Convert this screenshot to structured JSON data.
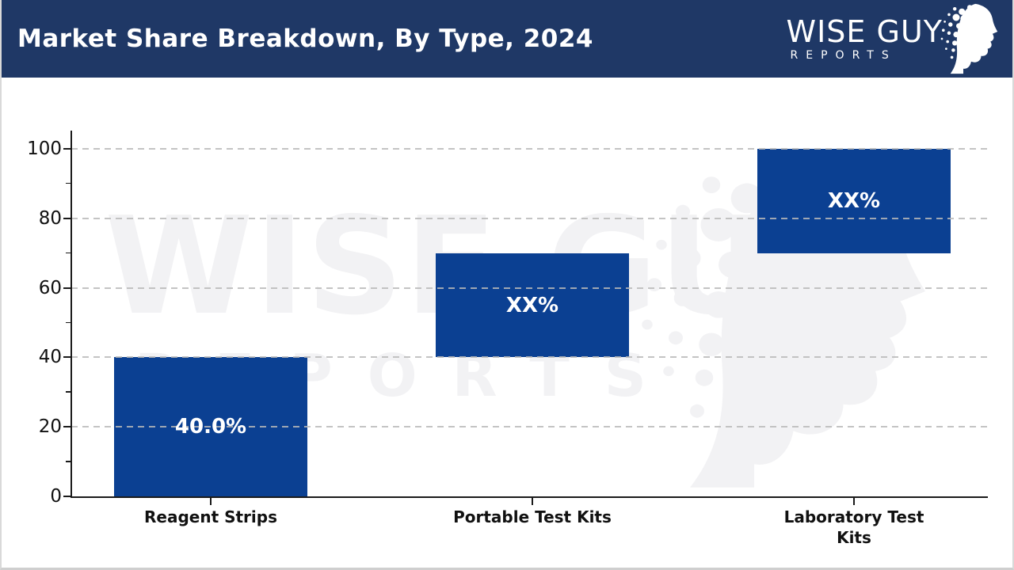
{
  "header": {
    "title": "Market Share Breakdown, By Type, 2024",
    "bg_color": "#1f3866",
    "logo": {
      "line1": "WISE GUY",
      "line2": "REPORTS"
    }
  },
  "watermark": {
    "line1": "WISE GUY",
    "line2": "REPORTS",
    "color": "#f2f2f4"
  },
  "chart_data": {
    "type": "bar",
    "subtype": "floating_segment_bars",
    "title": "Market Share Breakdown, By Type, 2024",
    "categories": [
      "Reagent Strips",
      "Portable Test Kits",
      "Laboratory Test Kits"
    ],
    "categories_lines": [
      [
        "Reagent Strips"
      ],
      [
        "Portable Test Kits"
      ],
      [
        "Laboratory Test",
        "Kits"
      ]
    ],
    "series": [
      {
        "segments": [
          {
            "start": 0,
            "end": 40,
            "label": "40.0%"
          },
          {
            "start": 40,
            "end": 70,
            "label": "XX%"
          },
          {
            "start": 70,
            "end": 100,
            "label": "XX%"
          }
        ]
      }
    ],
    "ylim": [
      0,
      100
    ],
    "yticks": [
      0,
      20,
      40,
      60,
      80,
      100
    ],
    "minor_yticks": [
      10,
      30,
      50,
      70,
      90
    ],
    "grid": "horizontal-dashed",
    "legend": "none",
    "bar_color": "#0b4092",
    "bar_label_color": "#ffffff"
  }
}
